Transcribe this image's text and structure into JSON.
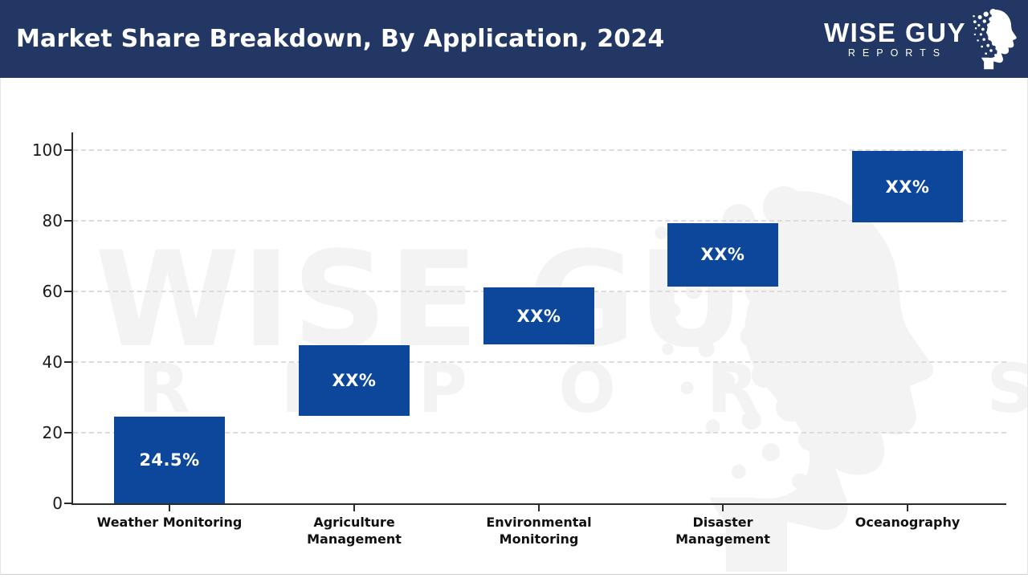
{
  "header": {
    "title": "Market Share Breakdown, By Application, 2024",
    "bg_color": "#223763",
    "logo": {
      "line1": "WISE GUY",
      "line2": "REPORTS"
    }
  },
  "watermark": {
    "line1": "WISE GUY",
    "line2": "R E P O R T S",
    "color": "#f3f3f3"
  },
  "chart_data": {
    "type": "bar",
    "subtype": "stepped-waterfall",
    "title": "Market Share Breakdown, By Application, 2024",
    "categories": [
      "Weather Monitoring",
      "Agriculture Management",
      "Environmental Monitoring",
      "Disaster Management",
      "Oceanography"
    ],
    "category_lines": [
      [
        "Weather Monitoring"
      ],
      [
        "Agriculture",
        "Management"
      ],
      [
        "Environmental",
        "Monitoring"
      ],
      [
        "Disaster",
        "Management"
      ],
      [
        "Oceanography"
      ]
    ],
    "segments": [
      {
        "label": "24.5%",
        "start": 0,
        "end": 24.5
      },
      {
        "label": "XX%",
        "start": 24.7,
        "end": 44.8
      },
      {
        "label": "XX%",
        "start": 45.0,
        "end": 61.1
      },
      {
        "label": "XX%",
        "start": 61.4,
        "end": 79.3
      },
      {
        "label": "XX%",
        "start": 79.5,
        "end": 99.7
      }
    ],
    "y_ticks": [
      0,
      20,
      40,
      60,
      80,
      100
    ],
    "ylim": [
      0,
      104
    ],
    "xlabel": "",
    "ylabel": "",
    "bar_color": "#0d479b",
    "value_label_color": "#ffffff",
    "grid": "horizontal dashed",
    "legend": "none"
  }
}
